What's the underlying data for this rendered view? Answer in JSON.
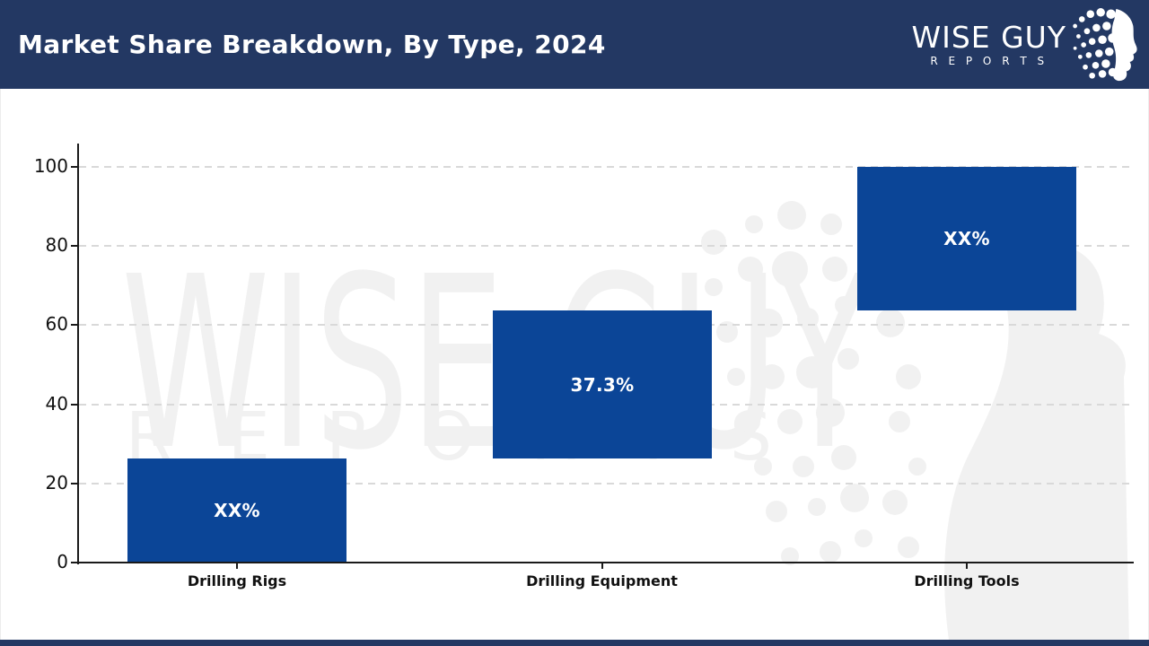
{
  "header": {
    "title": "Market Share Breakdown, By Type, 2024",
    "logo": {
      "wordmark": "WISE GUY",
      "subtext": "R E P O R T S"
    }
  },
  "watermark": {
    "wordmark": "WISE GUY",
    "subtext": "R E P O R T S"
  },
  "colors": {
    "header_bg": "#233863",
    "footer_bg": "#233863",
    "title_text": "#ffffff",
    "bar_fill": "#0b4597",
    "bar_label": "#ffffff",
    "gridline": "#d9d9d9",
    "axis": "#1a1a1a",
    "tick_label": "#111111",
    "watermark": "#f1f1f1"
  },
  "chart_data": {
    "type": "bar",
    "variant": "waterfall",
    "title": "Market Share Breakdown, By Type, 2024",
    "categories": [
      "Drilling Rigs",
      "Drilling Equipment",
      "Drilling Tools"
    ],
    "segments": [
      {
        "category": "Drilling Rigs",
        "start": 0,
        "end": 26.4,
        "value": 26.4,
        "label": "XX%"
      },
      {
        "category": "Drilling Equipment",
        "start": 26.4,
        "end": 63.7,
        "value": 37.3,
        "label": "37.3%"
      },
      {
        "category": "Drilling Tools",
        "start": 63.7,
        "end": 100,
        "value": 36.3,
        "label": "XX%"
      }
    ],
    "xlabel": "",
    "ylabel": "",
    "ylim": [
      0,
      100
    ],
    "yticks": [
      0,
      20,
      40,
      60,
      80,
      100
    ],
    "grid": "horizontal-dashed",
    "legend": "none"
  }
}
